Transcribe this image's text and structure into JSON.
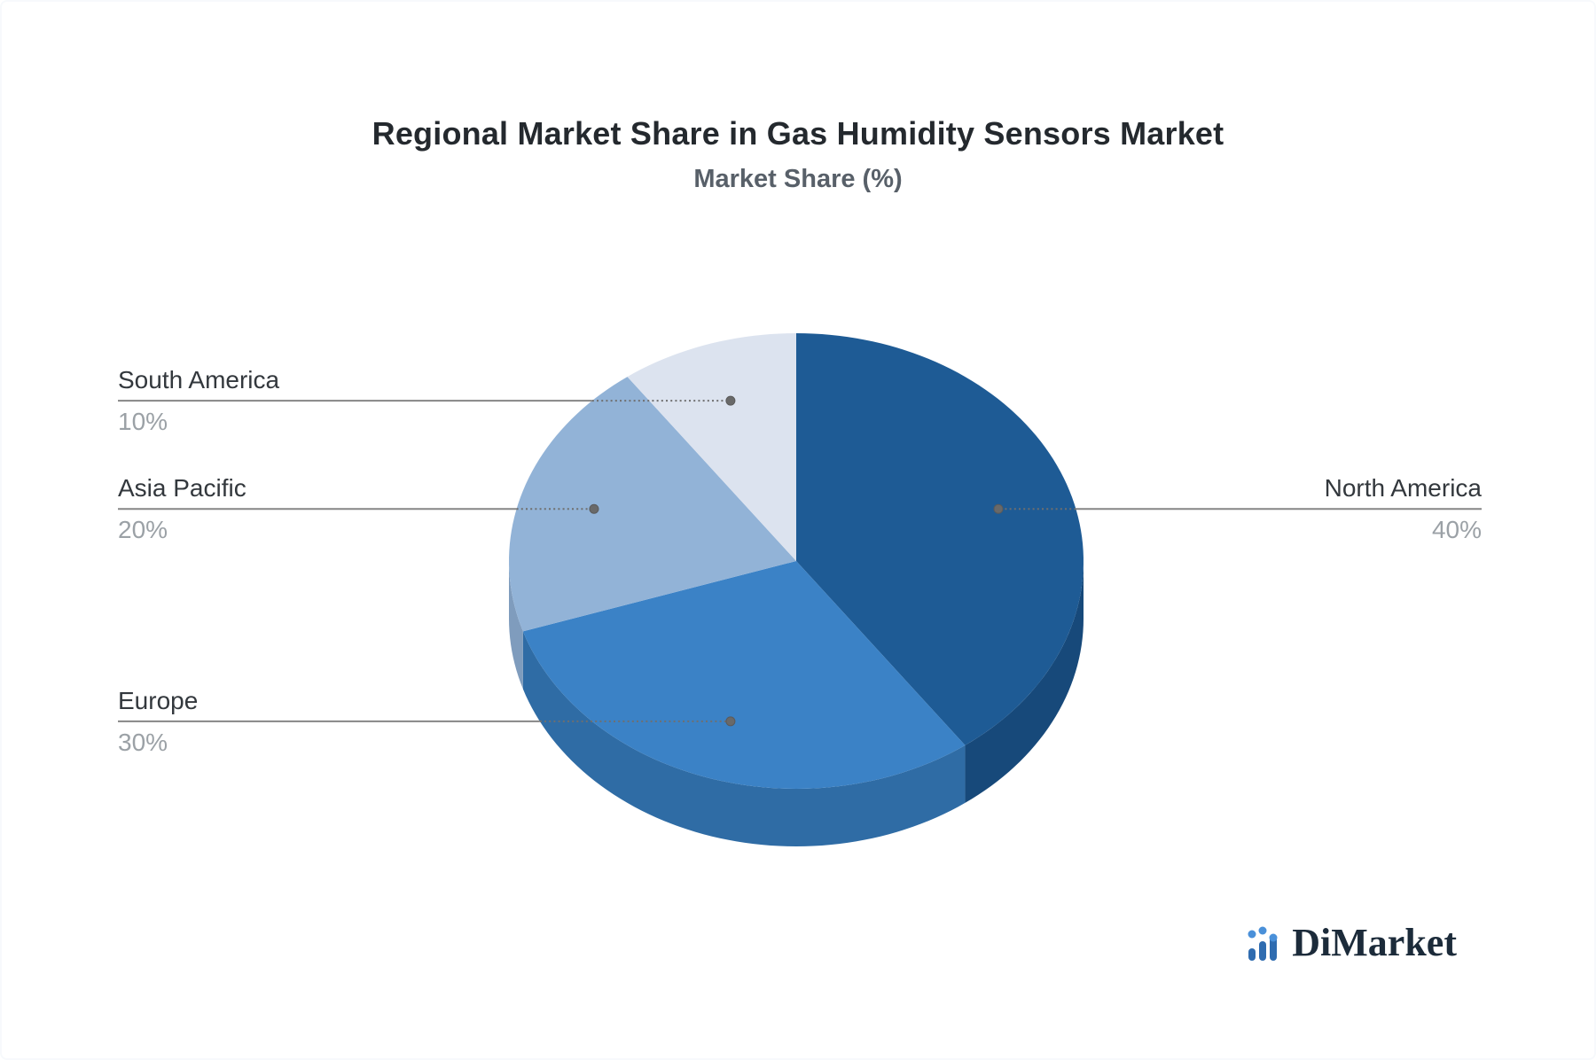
{
  "chart_data": {
    "type": "pie",
    "style": "3d",
    "title": "Regional Market Share in Gas Humidity Sensors Market",
    "subtitle": "Market Share (%)",
    "categories": [
      "North America",
      "Europe",
      "Asia Pacific",
      "South America"
    ],
    "values": [
      40,
      30,
      20,
      10
    ],
    "unit": "%",
    "start_angle_deg": 0,
    "direction": "clockwise",
    "legend_position": "connector-labels",
    "grid": "off",
    "labels": [
      {
        "name": "North America",
        "value_label": "40%",
        "side": "right"
      },
      {
        "name": "Europe",
        "value_label": "30%",
        "side": "left"
      },
      {
        "name": "Asia Pacific",
        "value_label": "20%",
        "side": "left"
      },
      {
        "name": "South America",
        "value_label": "10%",
        "side": "left"
      }
    ],
    "colors": {
      "slice_top": [
        "#1e5b95",
        "#3b82c6",
        "#92b3d7",
        "#dce3ef"
      ],
      "slice_side": [
        "#17497a",
        "#2f6ca5",
        "#7f9cbd",
        "#c9d3e2"
      ],
      "connector_solid": "#868686",
      "connector_dotted": "#6f6f6f",
      "connector_dot": "#696969",
      "label_name": "#33383d",
      "label_value": "#9ba1a6"
    }
  },
  "footer": {
    "brand": "DiMarket",
    "brand_color": "#1c2b3a",
    "icon": "bar-dots-chart-icon",
    "icon_color": "#2f6cb0"
  }
}
